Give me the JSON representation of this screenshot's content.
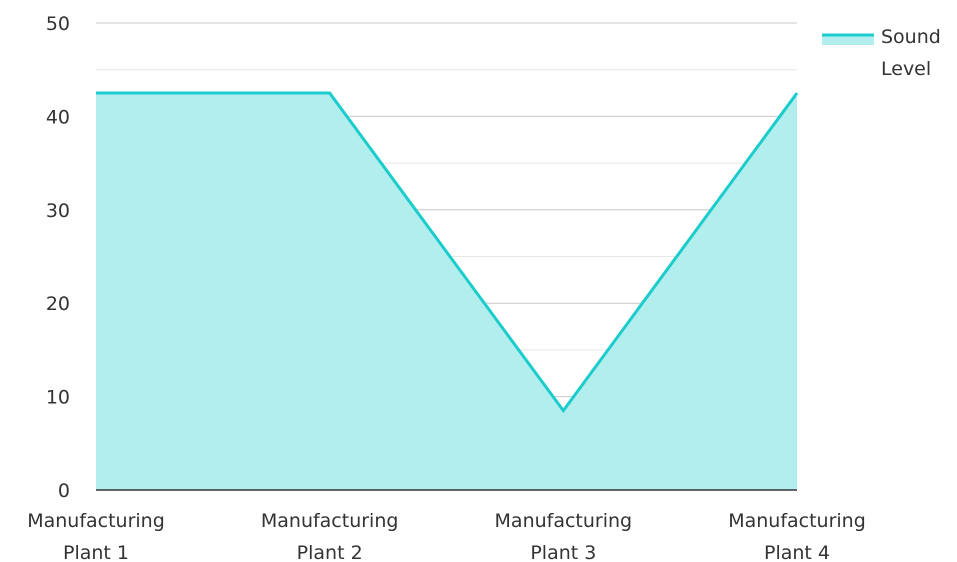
{
  "chart_data": {
    "type": "area",
    "title": "",
    "xlabel": "",
    "ylabel": "",
    "categories": [
      [
        "Manufacturing",
        "Plant 1"
      ],
      [
        "Manufacturing",
        "Plant 2"
      ],
      [
        "Manufacturing",
        "Plant 3"
      ],
      [
        "Manufacturing",
        "Plant 4"
      ]
    ],
    "series": [
      {
        "name": "Sound Level",
        "name_lines": [
          "Sound",
          "Level"
        ],
        "values": [
          42.5,
          42.5,
          8.5,
          42.5
        ],
        "line_color": "#1ccccc",
        "fill_color": "#b2eeee"
      }
    ],
    "ylim": [
      0,
      50
    ],
    "yticks": [
      0,
      10,
      20,
      30,
      40,
      50
    ],
    "grid": true,
    "legend": "top-right",
    "colors": {
      "grid_major": "#c8c8c8",
      "grid_minor": "#e6e6e6",
      "axis": "#333333"
    }
  }
}
